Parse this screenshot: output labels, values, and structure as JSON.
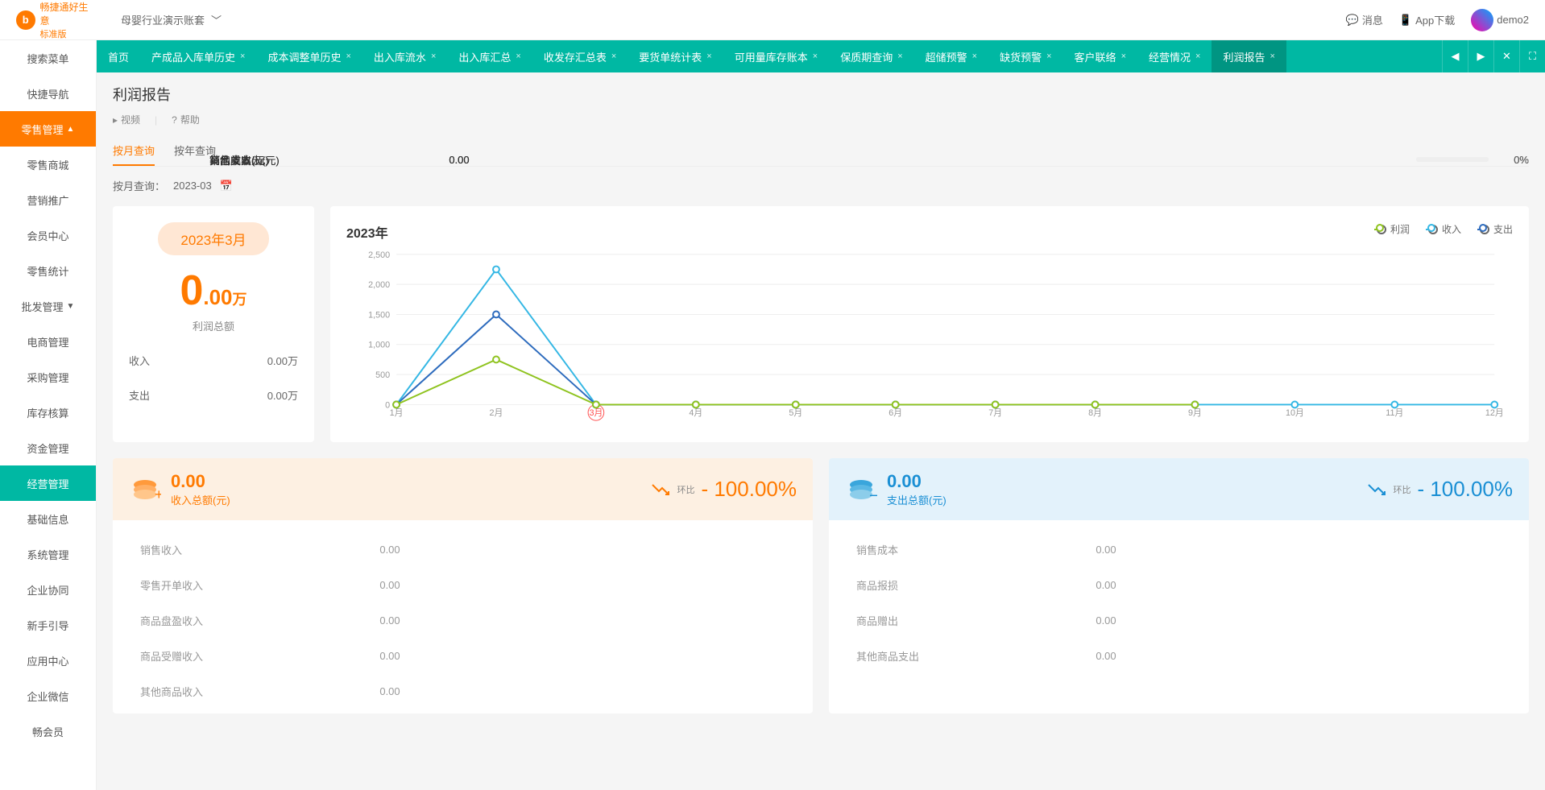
{
  "brand": {
    "name": "畅捷通好生意",
    "edition": "标准版"
  },
  "account_selector": "母婴行业演示账套",
  "header_actions": {
    "msg": "消息",
    "app": "App下载",
    "user": "demo2"
  },
  "sidebar": [
    {
      "label": "搜索菜单",
      "mode": ""
    },
    {
      "label": "快捷导航",
      "mode": ""
    },
    {
      "label": "零售管理",
      "mode": "active-orange",
      "caret": "▲"
    },
    {
      "label": "零售商城",
      "mode": ""
    },
    {
      "label": "营销推广",
      "mode": ""
    },
    {
      "label": "会员中心",
      "mode": ""
    },
    {
      "label": "零售统计",
      "mode": ""
    },
    {
      "label": "批发管理",
      "mode": "",
      "caret": "▼"
    },
    {
      "label": "电商管理",
      "mode": ""
    },
    {
      "label": "采购管理",
      "mode": ""
    },
    {
      "label": "库存核算",
      "mode": ""
    },
    {
      "label": "资金管理",
      "mode": ""
    },
    {
      "label": "经营管理",
      "mode": "active-teal"
    },
    {
      "label": "基础信息",
      "mode": ""
    },
    {
      "label": "系统管理",
      "mode": ""
    },
    {
      "label": "企业协同",
      "mode": ""
    },
    {
      "label": "新手引导",
      "mode": ""
    },
    {
      "label": "应用中心",
      "mode": ""
    },
    {
      "label": "企业微信",
      "mode": ""
    },
    {
      "label": "畅会员",
      "mode": ""
    }
  ],
  "tabs": [
    {
      "label": "首页",
      "closable": false
    },
    {
      "label": "产成品入库单历史",
      "closable": true
    },
    {
      "label": "成本调整单历史",
      "closable": true
    },
    {
      "label": "出入库流水",
      "closable": true
    },
    {
      "label": "出入库汇总",
      "closable": true
    },
    {
      "label": "收发存汇总表",
      "closable": true
    },
    {
      "label": "要货单统计表",
      "closable": true
    },
    {
      "label": "可用量库存账本",
      "closable": true
    },
    {
      "label": "保质期查询",
      "closable": true
    },
    {
      "label": "超储预警",
      "closable": true
    },
    {
      "label": "缺货预警",
      "closable": true
    },
    {
      "label": "客户联络",
      "closable": true
    },
    {
      "label": "经营情况",
      "closable": true
    },
    {
      "label": "利润报告",
      "closable": true,
      "active": true
    }
  ],
  "page": {
    "title": "利润报告",
    "help": {
      "video": "视频",
      "help": "帮助"
    },
    "subtabs": {
      "month": "按月查询",
      "year": "按年查询"
    },
    "filter_label": "按月查询：",
    "filter_value": "2023-03"
  },
  "summary": {
    "month_label": "2023年3月",
    "profit_int": "0",
    "profit_dec": ".00",
    "profit_unit": "万",
    "profit_label": "利润总额",
    "income_label": "收入",
    "income_value": "0.00万",
    "expense_label": "支出",
    "expense_value": "0.00万"
  },
  "chart": {
    "title": "2023年",
    "legend": {
      "profit": "利润",
      "income": "收入",
      "expense": "支出"
    },
    "colors": {
      "profit": "#8fc31f",
      "income": "#34b7e4",
      "expense": "#2d6bbd"
    },
    "y_ticks": [
      "0",
      "500",
      "1,000",
      "1,500",
      "2,000",
      "2,500"
    ],
    "y_max": 2500,
    "x_labels": [
      "1月",
      "2月",
      "3月",
      "4月",
      "5月",
      "6月",
      "7月",
      "8月",
      "9月",
      "10月",
      "11月",
      "12月"
    ],
    "x_highlight_index": 2,
    "series": {
      "income": [
        0,
        2250,
        0,
        0,
        0,
        0,
        0,
        0,
        0,
        0,
        0,
        0
      ],
      "expense": [
        0,
        1500,
        0,
        0,
        0,
        0,
        0,
        0,
        0,
        0,
        0,
        0
      ],
      "profit": [
        0,
        750,
        0,
        0,
        0,
        0,
        0,
        0,
        0,
        0,
        0,
        0
      ]
    },
    "line_cutoff": {
      "income": 12,
      "expense": 9,
      "profit": 9
    }
  },
  "income_panel": {
    "value": "0.00",
    "label": "收入总额(元)",
    "hb": "环比",
    "pct": "- 100.00%",
    "rows": [
      {
        "t": "main",
        "name": "销售收入(元)",
        "amt": "0.00",
        "bar": true,
        "pct": "0%"
      },
      {
        "t": "sub",
        "name": "销售收入",
        "amt": "0.00"
      },
      {
        "t": "sub",
        "name": "零售开单收入",
        "amt": "0.00"
      },
      {
        "t": "main",
        "name": "商品类收入(元)",
        "amt": "0.00",
        "bar": true,
        "pct": "0%"
      },
      {
        "t": "sub",
        "name": "商品盘盈收入",
        "amt": "0.00"
      },
      {
        "t": "sub",
        "name": "商品受赠收入",
        "amt": "0.00"
      },
      {
        "t": "sub",
        "name": "其他商品收入",
        "amt": "0.00"
      }
    ]
  },
  "expense_panel": {
    "value": "0.00",
    "label": "支出总额(元)",
    "hb": "环比",
    "pct": "- 100.00%",
    "rows": [
      {
        "t": "main",
        "name": "销售成本(元)",
        "amt": "0.00",
        "bar": true,
        "pct": "0%"
      },
      {
        "t": "sub",
        "name": "销售成本",
        "amt": "0.00"
      },
      {
        "t": "main",
        "name": "商品类支出(元)",
        "amt": "0.00",
        "bar": true,
        "pct": "0%"
      },
      {
        "t": "sub",
        "name": "商品报损",
        "amt": "0.00"
      },
      {
        "t": "sub",
        "name": "商品赠出",
        "amt": "0.00"
      },
      {
        "t": "sub",
        "name": "其他商品支出",
        "amt": "0.00"
      },
      {
        "t": "main",
        "name": "其他支出(元)",
        "amt": ""
      }
    ]
  }
}
